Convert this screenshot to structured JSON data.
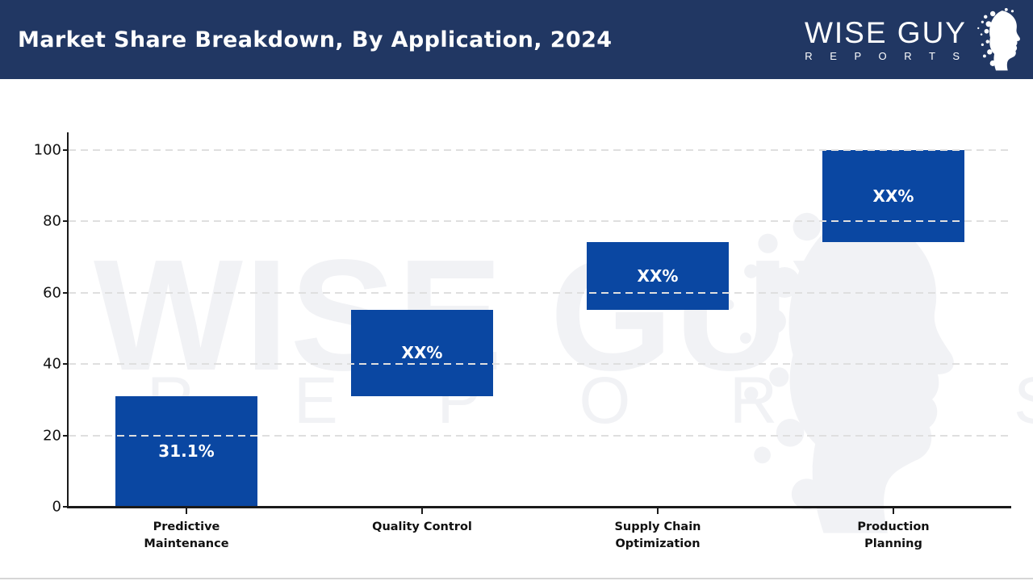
{
  "header": {
    "title": "Market Share Breakdown, By Application, 2024",
    "logo": {
      "line1": "WISE GUY",
      "line2": "R E P O R T S"
    }
  },
  "watermark": {
    "line1": "WISE GUY",
    "line2": "R E P O R T S"
  },
  "colors": {
    "header_bg": "#213763",
    "bar": "#0a47a2",
    "grid": "#dfdfdf",
    "axis": "#1a1a1a",
    "bar_label_text": "#ffffff",
    "watermark": "#f1f2f5"
  },
  "chart_data": {
    "type": "bar",
    "subtype": "waterfall",
    "title": "Market Share Breakdown, By Application, 2024",
    "categories": [
      {
        "name": "Predictive Maintenance",
        "lines": [
          "Predictive",
          "Maintenance"
        ]
      },
      {
        "name": "Quality Control",
        "lines": [
          "Quality Control"
        ]
      },
      {
        "name": "Supply Chain Optimization",
        "lines": [
          "Supply Chain",
          "Optimization"
        ]
      },
      {
        "name": "Production Planning",
        "lines": [
          "Production",
          "Planning"
        ]
      }
    ],
    "segments": [
      {
        "category": "Predictive Maintenance",
        "start": 0,
        "end": 31.1,
        "label": "31.1%"
      },
      {
        "category": "Quality Control",
        "start": 31.1,
        "end": 55.2,
        "label": "XX%"
      },
      {
        "category": "Supply Chain Optimization",
        "start": 55.2,
        "end": 74.3,
        "label": "XX%"
      },
      {
        "category": "Production Planning",
        "start": 74.3,
        "end": 100,
        "label": "XX%"
      }
    ],
    "yticks": [
      0,
      20,
      40,
      60,
      80,
      100
    ],
    "ylim": [
      0,
      105
    ],
    "grid": "dashed-horizontal",
    "legend": "none",
    "ylabel": "",
    "xlabel": ""
  }
}
